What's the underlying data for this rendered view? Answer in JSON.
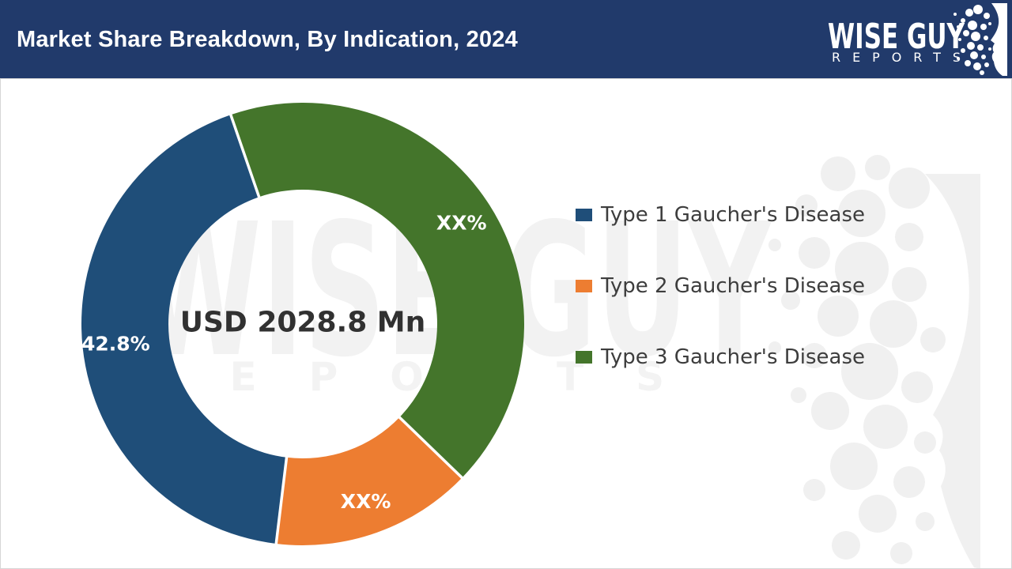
{
  "header": {
    "title": "Market Share Breakdown, By Indication, 2024",
    "bg_color": "#213A6B"
  },
  "brand": {
    "name_line1": "WISE GUY",
    "name_line2": "REPORTS"
  },
  "chart_data": {
    "type": "pie",
    "subtype": "donut",
    "center_label": "USD 2028.8 Mn",
    "start_angle_deg": 109,
    "direction": "counterclockwise",
    "legend_position": "right",
    "series": [
      {
        "name": "Type 1 Gaucher's Disease",
        "color": "#1F4E79",
        "value_pct": 42.8,
        "slice_label": "42.8%"
      },
      {
        "name": "Type 2 Gaucher's Disease",
        "color": "#ED7D31",
        "value_pct": 14.7,
        "slice_label": "XX%"
      },
      {
        "name": "Type 3 Gaucher's Disease",
        "color": "#44752B",
        "value_pct": 42.5,
        "slice_label": "XX%"
      }
    ]
  },
  "colors": {
    "header_bg": "#213A6B",
    "type1_blue": "#1F4E79",
    "type2_orange": "#ED7D31",
    "type3_green": "#44752B",
    "watermark_gray": "#f2f2f2"
  }
}
